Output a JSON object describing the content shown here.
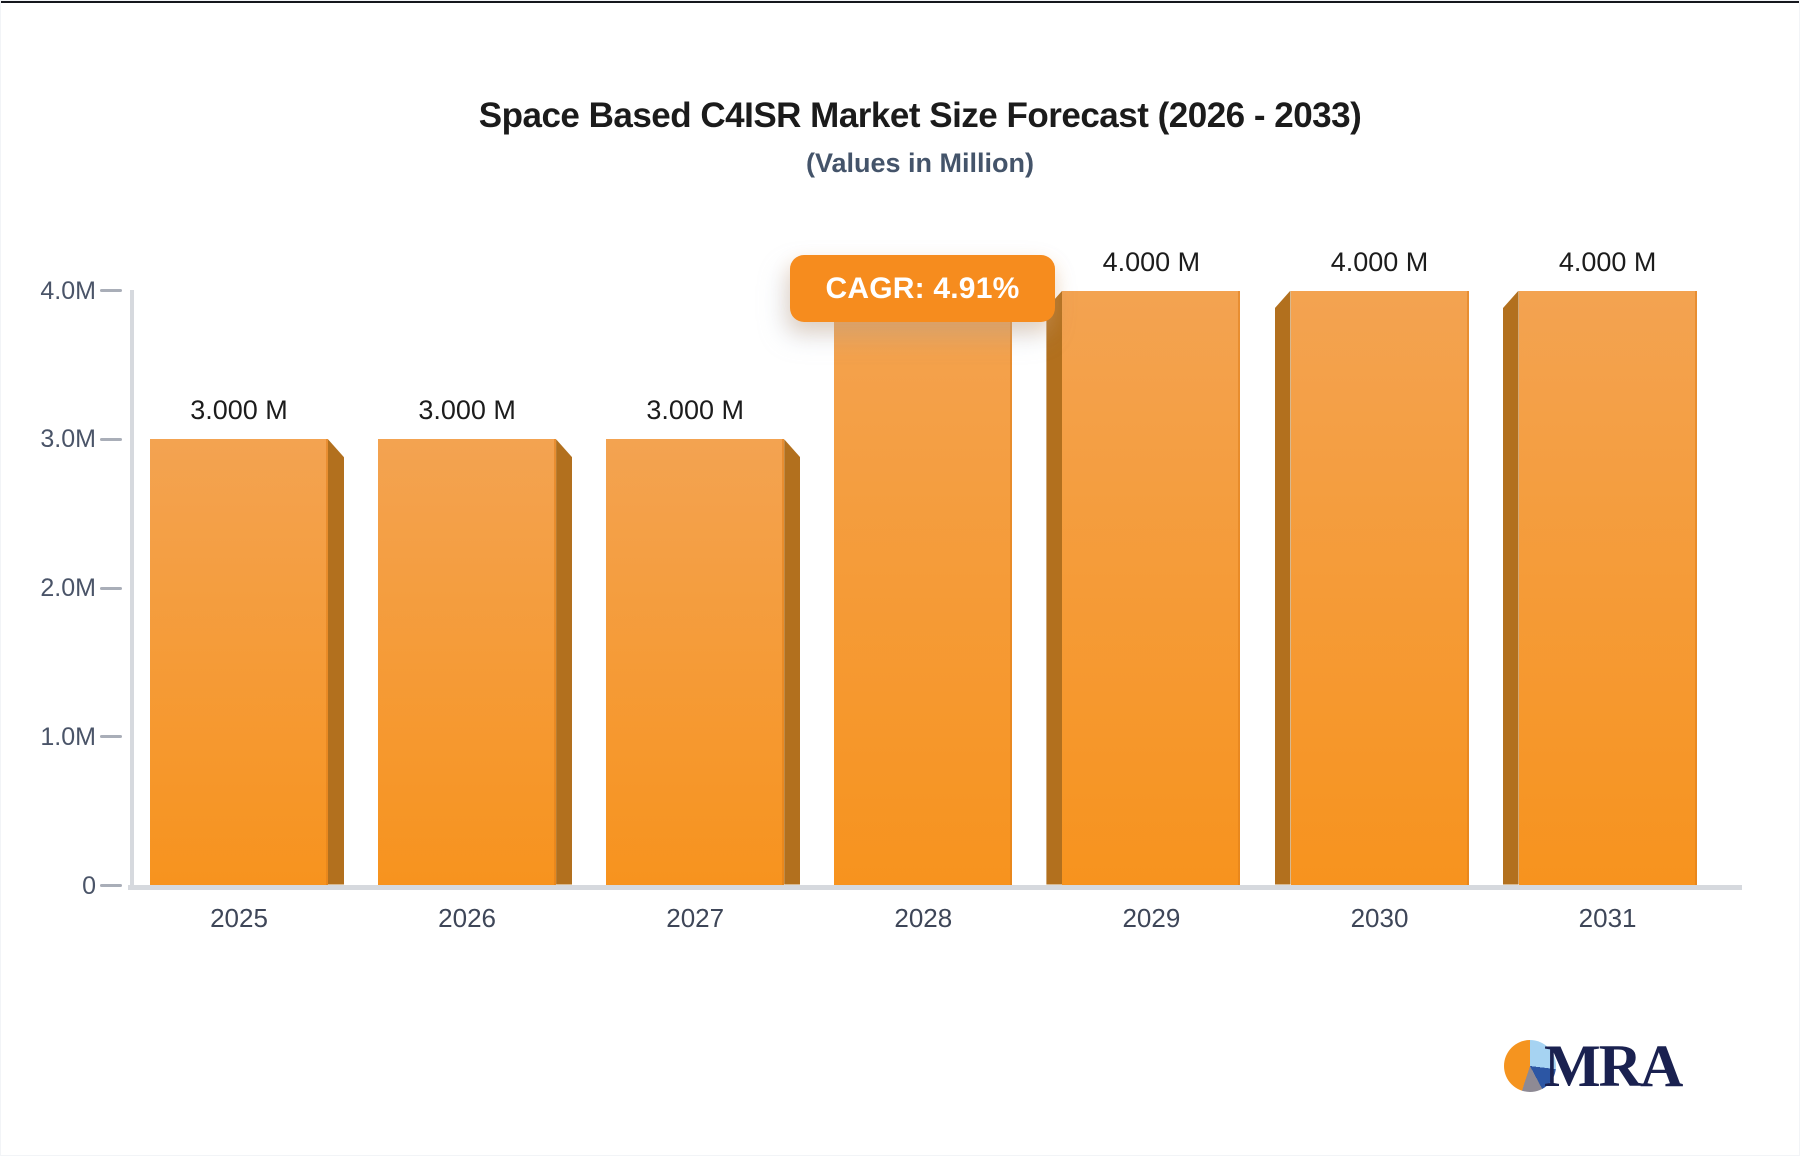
{
  "window": {
    "top_border_color": "#15171d"
  },
  "chart_data": {
    "type": "bar",
    "title": "Space Based C4ISR Market Size Forecast (2026 - 2033)",
    "subtitle": "(Values in Million)",
    "unit": "Million",
    "categories": [
      "2025",
      "2026",
      "2027",
      "2028",
      "2029",
      "2030",
      "2031"
    ],
    "values": [
      3000,
      3000,
      3000,
      4000,
      4000,
      4000,
      4000
    ],
    "bar_labels": [
      "3.000 M",
      "3.000 M",
      "3.000 M",
      null,
      "4.000 M",
      "4.000 M",
      "4.000 M"
    ],
    "y_ticks": [
      {
        "label": "4.0M",
        "value": 4000
      },
      {
        "label": "3.0M",
        "value": 3000
      },
      {
        "label": "2.0M",
        "value": 2000
      },
      {
        "label": "1.0M",
        "value": 1000
      },
      {
        "label": "0",
        "value": 0
      }
    ],
    "ylim": [
      0,
      4000
    ],
    "grid": false,
    "legend": null,
    "annotation": {
      "label": "CAGR: 4.91%"
    },
    "colors": {
      "bar_face_top": "#f3a351",
      "bar_face_bottom": "#f7931e",
      "bar_side": "#b2701e",
      "badge_bg": "#f68c1e",
      "axis_line": "#d6d9de",
      "logo_navy": "#1a2150",
      "logo_orange": "#f5941f"
    }
  },
  "branding": {
    "logo_text": "MRA"
  }
}
